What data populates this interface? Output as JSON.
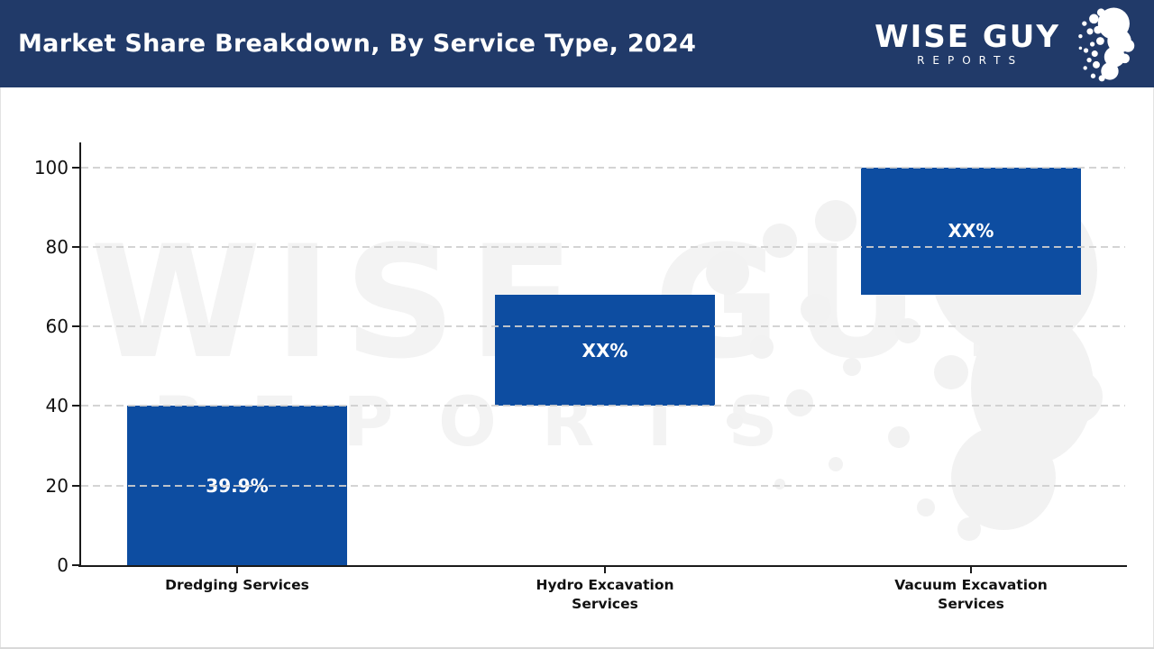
{
  "header": {
    "title": "Market Share Breakdown, By Service Type, 2024",
    "logo": {
      "line1": "WISE GUY",
      "line2": "REPORTS"
    }
  },
  "watermark": {
    "line1": "WISE GUY",
    "line2": "REPORTS"
  },
  "chart_data": {
    "type": "bar",
    "subtype": "waterfall",
    "title": "Market Share Breakdown, By Service Type, 2024",
    "categories": [
      "Dredging Services",
      "Hydro Excavation Services",
      "Vacuum Excavation Services"
    ],
    "category_label_lines": [
      [
        "Dredging Services"
      ],
      [
        "Hydro Excavation",
        "Services"
      ],
      [
        "Vacuum Excavation",
        "Services"
      ]
    ],
    "segments": [
      {
        "category": "Dredging Services",
        "start": 0,
        "end": 40,
        "label": "39.9%"
      },
      {
        "category": "Hydro Excavation Services",
        "start": 40,
        "end": 68,
        "label": "XX%"
      },
      {
        "category": "Vacuum Excavation Services",
        "start": 68,
        "end": 100,
        "label": "XX%"
      }
    ],
    "xlabel": "",
    "ylabel": "",
    "ylim": [
      0,
      100
    ],
    "yticks": [
      0,
      20,
      40,
      60,
      80,
      100
    ],
    "grid": true,
    "legend": false,
    "colors": {
      "bar": "#0d4da1",
      "grid": "#d6d6d6",
      "axis": "#1a1a1a",
      "header_bg": "#213a69",
      "bar_label_text": "#ffffff",
      "watermark": "#f2f2f2"
    }
  }
}
